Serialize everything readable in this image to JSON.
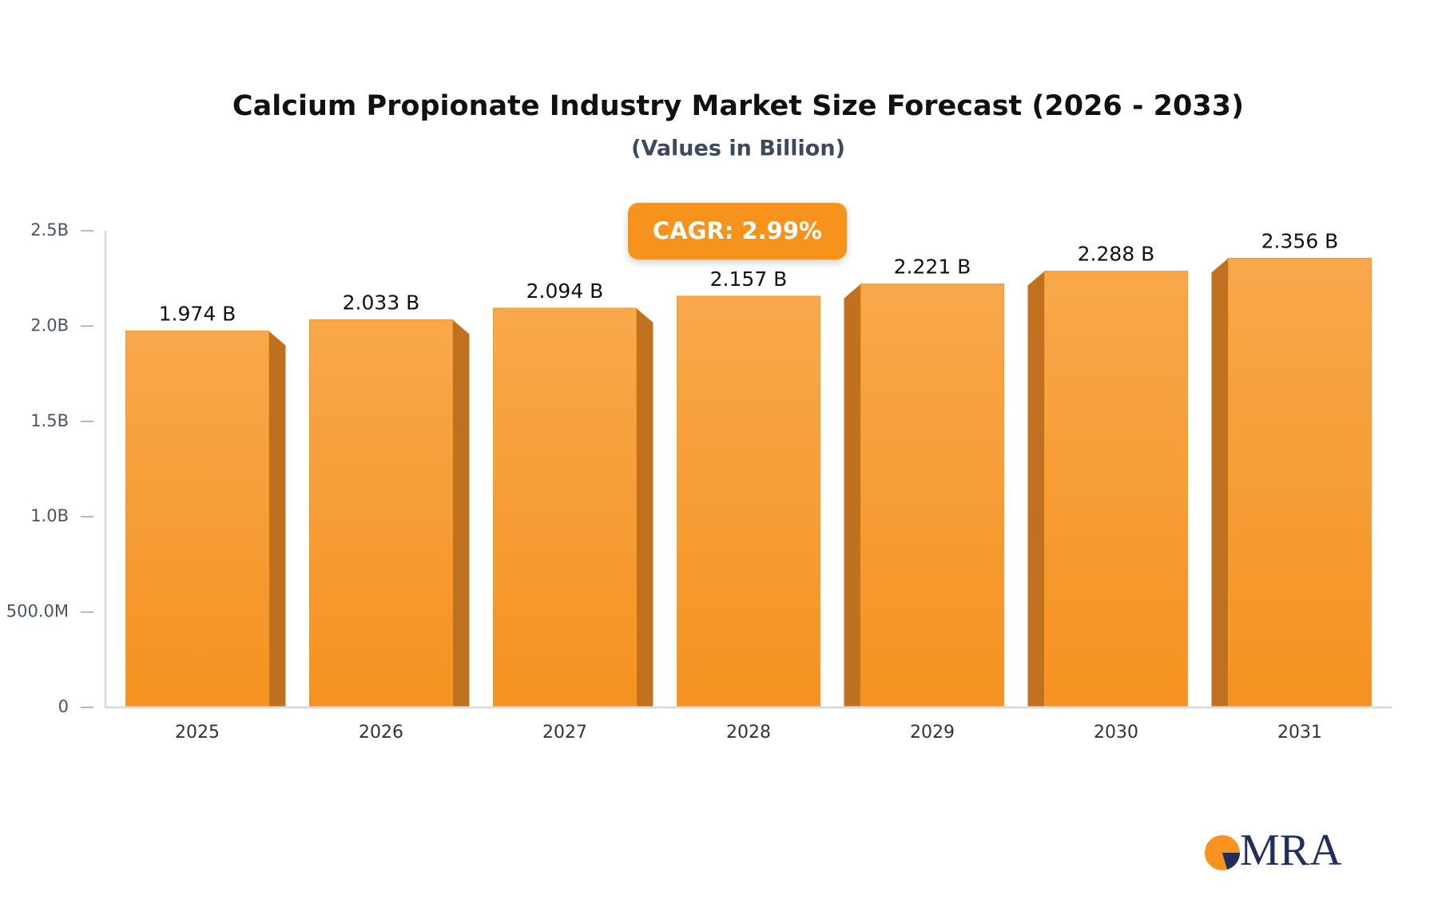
{
  "chart_data": {
    "type": "bar",
    "title": "Calcium Propionate Industry Market Size Forecast (2026 - 2033)",
    "subtitle": "(Values in Billion)",
    "annotation": "CAGR: 2.99%",
    "logo": "MRA",
    "categories": [
      "2025",
      "2026",
      "2027",
      "2028",
      "2029",
      "2030",
      "2031"
    ],
    "values": [
      1.974,
      2.033,
      2.094,
      2.157,
      2.221,
      2.288,
      2.356
    ],
    "value_labels": [
      "1.974 B",
      "2.033 B",
      "2.094 B",
      "2.157 B",
      "2.221 B",
      "2.288 B",
      "2.356 B"
    ],
    "color": "#f7991f",
    "ylim": [
      0,
      2.5
    ],
    "yticks": [
      0,
      {
        "value": 0.5,
        "label": "500.0M"
      },
      {
        "value": 1.0,
        "label": "1.0B"
      },
      {
        "value": 1.5,
        "label": "1.5B"
      },
      {
        "value": 2.0,
        "label": "2.0B"
      },
      {
        "value": 2.5,
        "label": "2.5B"
      }
    ],
    "grid": false
  }
}
